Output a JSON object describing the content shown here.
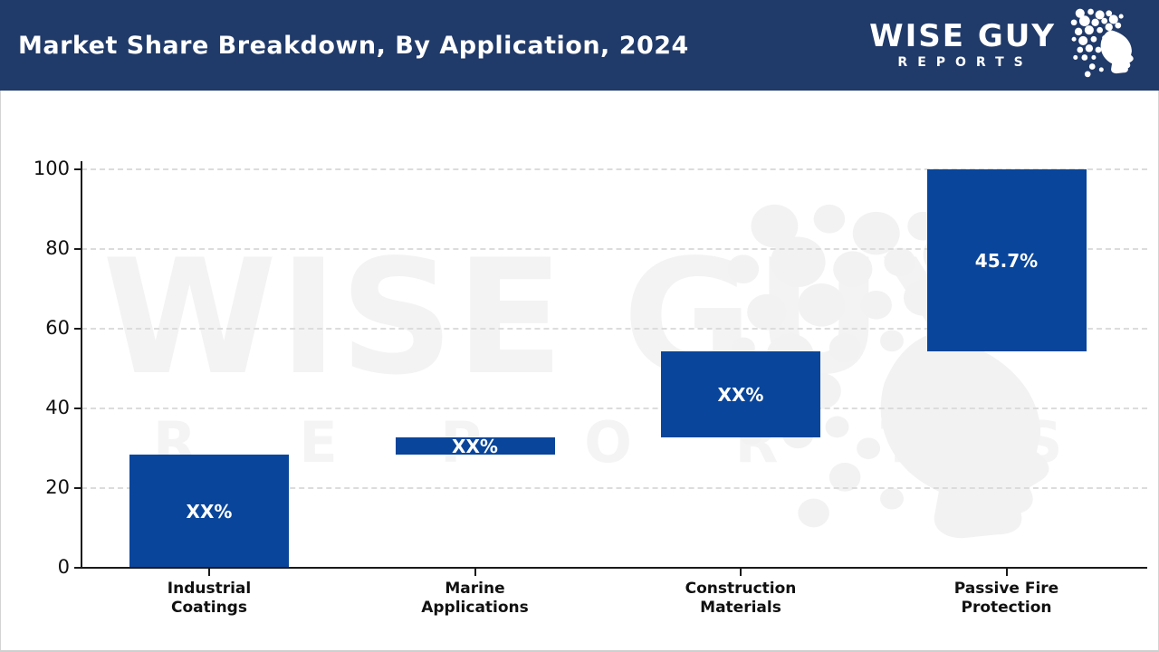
{
  "header": {
    "title": "Market Share Breakdown, By Application, 2024",
    "logo_line1": "WISE GUY",
    "logo_line2": "REPORTS",
    "bg_color": "#203a69"
  },
  "watermark": {
    "line1": "WISE GUY",
    "line2": "R E P O R T S"
  },
  "chart_data": {
    "type": "bar",
    "variant": "floating-waterfall",
    "title": "Market Share Breakdown, By Application, 2024",
    "categories": [
      "Industrial Coatings",
      "Marine Applications",
      "Construction Materials",
      "Passive Fire Protection"
    ],
    "category_label_lines": [
      [
        "Industrial",
        "Coatings"
      ],
      [
        "Marine",
        "Applications"
      ],
      [
        "Construction",
        "Materials"
      ],
      [
        "Passive Fire",
        "Protection"
      ]
    ],
    "segments": [
      {
        "category": "Industrial Coatings",
        "start": 0,
        "end": 28.4,
        "size": 28.4,
        "label": "XX%"
      },
      {
        "category": "Marine Applications",
        "start": 28.4,
        "end": 32.7,
        "size": 4.3,
        "label": "XX%"
      },
      {
        "category": "Construction Materials",
        "start": 32.7,
        "end": 54.3,
        "size": 21.6,
        "label": "XX%"
      },
      {
        "category": "Passive Fire Protection",
        "start": 54.3,
        "end": 100,
        "size": 45.7,
        "label": "45.7%"
      }
    ],
    "y_ticks": [
      0,
      20,
      40,
      60,
      80,
      100
    ],
    "ylim": [
      0,
      100
    ],
    "xlabel": "",
    "ylabel": "",
    "grid": "horizontal-dashed",
    "legend": "none",
    "bar_color": "#09459a",
    "bar_label_color": "#ffffff"
  }
}
